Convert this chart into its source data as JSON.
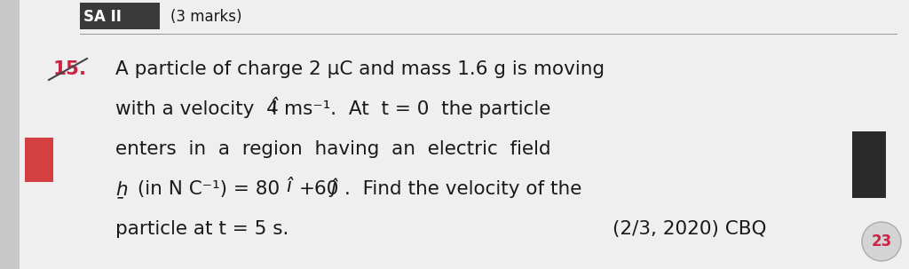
{
  "bg_color": "#e8e8e8",
  "page_color": "#f0efef",
  "text_color": "#1a1a1a",
  "header_bg": "#3a3a3a",
  "header_text": "SA II",
  "header_subtext": "(3 marks)",
  "question_number": "15.",
  "line1": "A particle of charge 2 μC and mass 1.6 g is moving",
  "line2_a": "with a velocity  4",
  "line2_b": "î",
  "line2_c": "ms⁻¹.  At  t = 0  the particle",
  "line3": "enters  in  a  region  having  an  electric  field",
  "line4_a": "ẖ",
  "line4_b": " (in N C⁻¹) = 80",
  "line4_c": "î",
  "line4_d": "+60",
  "line4_e": "ĵ",
  "line4_f": ".  Find the velocity of the",
  "line5": "particle at t = 5 s.",
  "line5_right": "(2/3, 2020) CBQ",
  "circle_number": "23",
  "dark_rect_color": "#2a2a2a",
  "circle_color": "#d4d4d4",
  "left_bg_color": "#c8c8c8",
  "finger_color": "#b8805a",
  "orange_rect_color": "#d44040",
  "divider_color": "#999999"
}
